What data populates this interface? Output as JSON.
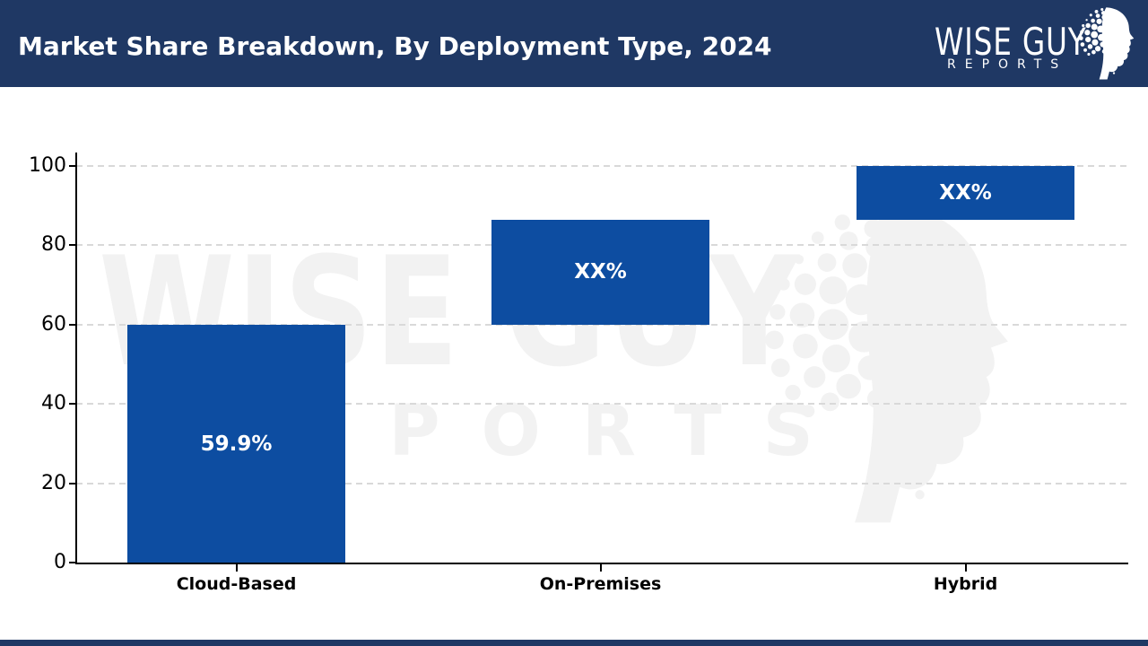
{
  "header": {
    "title": "Market Share Breakdown, By Deployment Type, 2024",
    "logo": {
      "wordmark": "WISE GUY",
      "subtext": "REPORTS"
    }
  },
  "watermark": {
    "wordmark": "WISE GUY",
    "subtext": "REPORTS"
  },
  "chart_data": {
    "type": "bar",
    "subtype": "floating-waterfall",
    "title": "Market Share Breakdown, By Deployment Type, 2024",
    "categories": [
      "Cloud-Based",
      "On-Premises",
      "Hybrid"
    ],
    "segments": [
      {
        "category": "Cloud-Based",
        "start": 0,
        "end": 59.9,
        "label": "59.9%"
      },
      {
        "category": "On-Premises",
        "start": 59.9,
        "end": 86.5,
        "label": "XX%"
      },
      {
        "category": "Hybrid",
        "start": 86.5,
        "end": 100,
        "label": "XX%"
      }
    ],
    "xlabel": "",
    "ylabel": "",
    "ylim": [
      0,
      100
    ],
    "yticks": [
      0,
      20,
      40,
      60,
      80,
      100
    ],
    "grid": {
      "horizontal": true,
      "style": "dashed"
    },
    "legend": null
  },
  "colors": {
    "header_bg": "#1f3864",
    "footer_bg": "#1f3864",
    "chart_bg": "#ffffff",
    "bar": "#0d4da1",
    "bar_label": "#ffffff",
    "gridline": "#d9d9d9",
    "axis": "#000000",
    "watermark": "#f2f2f2",
    "title_text": "#ffffff"
  }
}
